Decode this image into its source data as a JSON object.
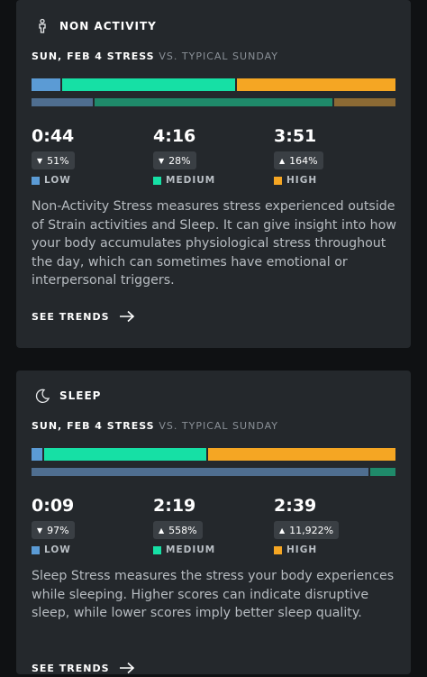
{
  "colors": {
    "low": "#5b9bd5",
    "medium": "#16e0a5",
    "high": "#f5a623",
    "typical_low": "#4f6e90",
    "typical_medium": "#1f8a6a",
    "typical_high": "#8c6a34"
  },
  "cards": [
    {
      "title": "NON ACTIVITY",
      "icon": "person-standing-icon",
      "date_label": "SUN, FEB 4 STRESS",
      "vs_label": "VS. TYPICAL SUNDAY",
      "bar_today": [
        0.08,
        0.48,
        0.44
      ],
      "bar_typical": [
        0.17,
        0.66,
        0.17
      ],
      "stats": [
        {
          "time": "0:44",
          "change": "51%",
          "direction": "down",
          "label": "LOW"
        },
        {
          "time": "4:16",
          "change": "28%",
          "direction": "down",
          "label": "MEDIUM"
        },
        {
          "time": "3:51",
          "change": "164%",
          "direction": "up",
          "label": "HIGH"
        }
      ],
      "description": "Non-Activity Stress measures stress experienced outside of Strain activities and Sleep. It can give insight into how your body accumulates physiological stress throughout the day, which can sometimes have emotional or interpersonal triggers.",
      "trends_label": "SEE TRENDS"
    },
    {
      "title": "SLEEP",
      "icon": "crescent-moon-icon",
      "date_label": "SUN, FEB 4 STRESS",
      "vs_label": "VS. TYPICAL SUNDAY",
      "bar_today": [
        0.03,
        0.45,
        0.52
      ],
      "bar_typical": [
        0.93,
        0.07,
        0.0
      ],
      "stats": [
        {
          "time": "0:09",
          "change": "97%",
          "direction": "down",
          "label": "LOW"
        },
        {
          "time": "2:19",
          "change": "558%",
          "direction": "up",
          "label": "MEDIUM"
        },
        {
          "time": "2:39",
          "change": "11,922%",
          "direction": "up",
          "label": "HIGH"
        }
      ],
      "description": "Sleep Stress measures the stress your body experiences while sleeping. Higher scores can indicate disruptive sleep, while lower scores imply better sleep quality.",
      "trends_label": "SEE TRENDS"
    }
  ]
}
